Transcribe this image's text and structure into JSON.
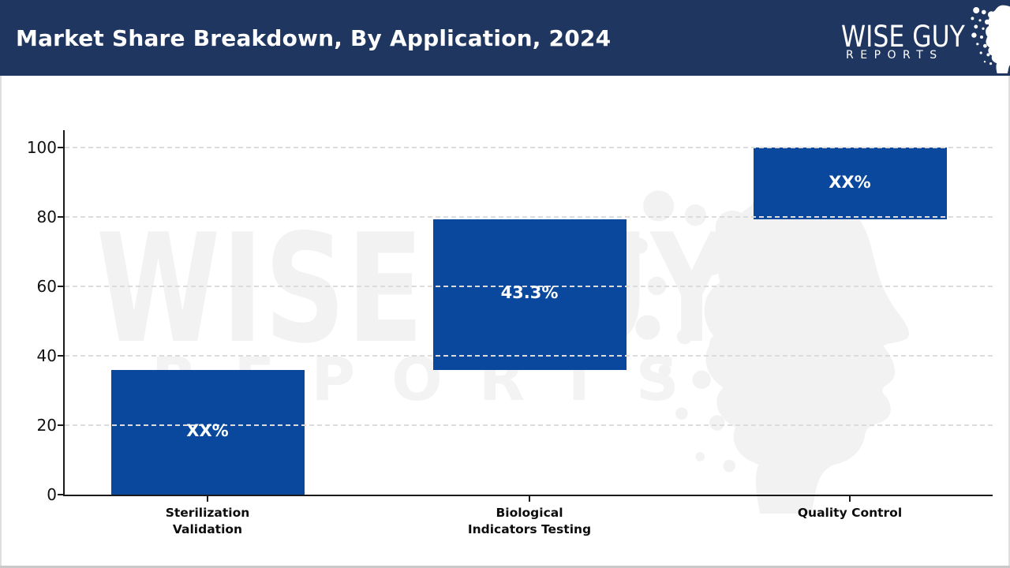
{
  "header": {
    "title": "Market Share Breakdown, By Application, 2024",
    "logo": {
      "name": "WISE GUY",
      "subtitle": "REPORTS"
    }
  },
  "watermark": {
    "name": "WISE GUY",
    "subtitle": "REPORTS"
  },
  "colors": {
    "header_bg": "#1F3660",
    "bar": "#0A489D",
    "bar_label": "#FFFFFF",
    "watermark": "#F2F2F3",
    "gridline": "#DCDCDC",
    "axis": "#1A1A1A"
  },
  "chart_data": {
    "type": "bar",
    "subtype": "floating-waterfall",
    "title": "Market Share Breakdown, By Application, 2024",
    "categories": [
      "Sterilization Validation",
      "Biological Indicators Testing",
      "Quality Control"
    ],
    "category_label_lines": [
      [
        "Sterilization",
        "Validation"
      ],
      [
        "Biological",
        "Indicators Testing"
      ],
      [
        "Quality Control"
      ]
    ],
    "series": [
      {
        "name": "Sterilization Validation",
        "start": 0,
        "end": 36,
        "value": 36,
        "value_label": "XX%"
      },
      {
        "name": "Biological Indicators Testing",
        "start": 36,
        "end": 79.3,
        "value": 43.3,
        "value_label": "43.3%"
      },
      {
        "name": "Quality Control",
        "start": 79.3,
        "end": 100,
        "value": 20.7,
        "value_label": "XX%"
      }
    ],
    "xlabel": "",
    "ylabel": "",
    "ylim": [
      0,
      100
    ],
    "yticks": [
      0,
      20,
      40,
      60,
      80,
      100
    ],
    "grid": "horizontal-dashed",
    "legend": "none"
  }
}
